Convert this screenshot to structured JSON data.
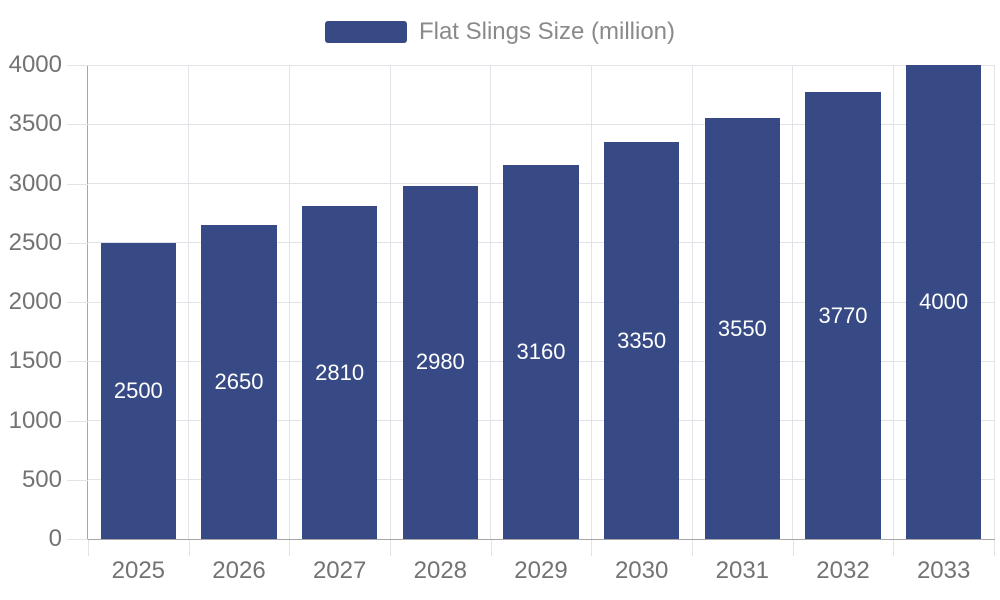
{
  "legend": {
    "label": "Flat Slings Size (million)"
  },
  "chart_data": {
    "type": "bar",
    "title": "",
    "xlabel": "",
    "ylabel": "",
    "categories": [
      "2025",
      "2026",
      "2027",
      "2028",
      "2029",
      "2030",
      "2031",
      "2032",
      "2033"
    ],
    "series": [
      {
        "name": "Flat Slings Size (million)",
        "values": [
          2500,
          2650,
          2810,
          2980,
          3160,
          3350,
          3550,
          3770,
          4000
        ]
      }
    ],
    "ylim": [
      0,
      4000
    ],
    "yticks": [
      0,
      500,
      1000,
      1500,
      2000,
      2500,
      3000,
      3500,
      4000
    ],
    "grid": true,
    "legend_position": "top-center",
    "bar_width_fraction": 0.75,
    "data_labels_inside_bars": true,
    "colors": {
      "bar": "#374A85",
      "bar_label": "#ffffff",
      "axis_label": "#737373",
      "legend_label": "#8a8a8a",
      "axis_line": "#a6a6a6",
      "grid_line": "#e2e2e8",
      "background": "#ffffff"
    }
  }
}
